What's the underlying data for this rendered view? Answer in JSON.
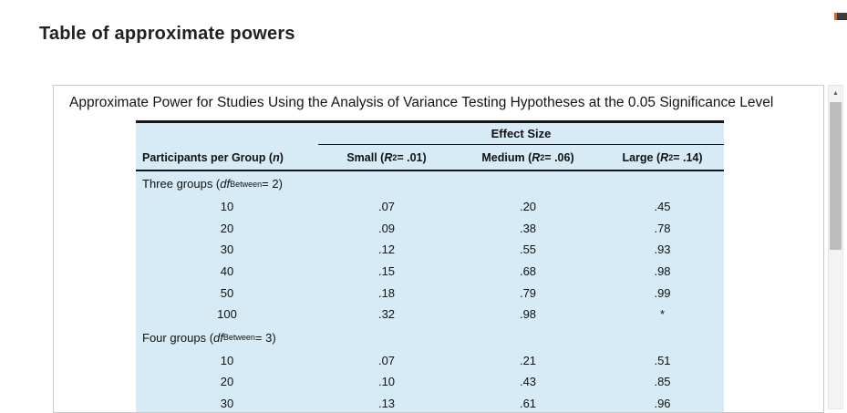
{
  "page": {
    "title": "Table of approximate powers"
  },
  "colors": {
    "table_bg": "#d6ebf5",
    "rule_color": "#161616",
    "accent_orange": "#e0622b",
    "scrollbar_thumb": "#bdbdbd"
  },
  "panel": {
    "table_title": "Approximate Power for Studies Using the Analysis of Variance Testing Hypotheses at the 0.05 Significance Level",
    "table": {
      "spanner": "Effect Size",
      "columns": [
        {
          "pre": "Participants per Group (",
          "it": "n",
          "post": ")"
        },
        {
          "pre": "Small (",
          "it": "R",
          "sup": "2",
          "post": " = .01)"
        },
        {
          "pre": "Medium (",
          "it": "R",
          "sup": "2",
          "post": " = .06)"
        },
        {
          "pre": "Large (",
          "it": "R",
          "sup": "2",
          "post": " = .14)"
        }
      ],
      "sections": [
        {
          "label": {
            "pre": "Three groups (",
            "it": "df",
            "sub": "Between",
            "post": " = 2)"
          },
          "rows": [
            [
              "10",
              ".07",
              ".20",
              ".45"
            ],
            [
              "20",
              ".09",
              ".38",
              ".78"
            ],
            [
              "30",
              ".12",
              ".55",
              ".93"
            ],
            [
              "40",
              ".15",
              ".68",
              ".98"
            ],
            [
              "50",
              ".18",
              ".79",
              ".99"
            ],
            [
              "100",
              ".32",
              ".98",
              "*"
            ]
          ]
        },
        {
          "label": {
            "pre": "Four groups (",
            "it": "df",
            "sub": "Between",
            "post": " = 3)"
          },
          "rows": [
            [
              "10",
              ".07",
              ".21",
              ".51"
            ],
            [
              "20",
              ".10",
              ".43",
              ".85"
            ],
            [
              "30",
              ".13",
              ".61",
              ".96"
            ]
          ]
        }
      ]
    }
  },
  "scrollbar": {
    "up_arrow": "▲"
  }
}
